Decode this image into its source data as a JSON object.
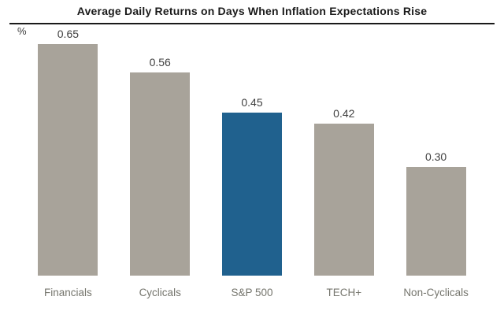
{
  "header": {
    "title": "Average Daily Returns on Days When Inflation Expectations Rise"
  },
  "chart_data": {
    "type": "bar",
    "title": "Average Daily Returns on Days When Inflation Expectations Rise",
    "xlabel": "",
    "ylabel": "%",
    "categories": [
      "Financials",
      "Cyclicals",
      "S&P 500",
      "TECH+",
      "Non-Cyclicals"
    ],
    "values": [
      0.65,
      0.56,
      0.45,
      0.42,
      0.3
    ],
    "value_labels": [
      "0.65",
      "0.56",
      "0.45",
      "0.42",
      "0.30"
    ],
    "highlight_index": 2,
    "colors": {
      "bar_default": "#a8a39a",
      "bar_highlight": "#20618e",
      "title_text": "#1a1a1a",
      "value_text": "#3f3f3f",
      "category_text": "#75756d"
    },
    "ylim": [
      0,
      0.7
    ],
    "grid": false,
    "legend": "none"
  }
}
